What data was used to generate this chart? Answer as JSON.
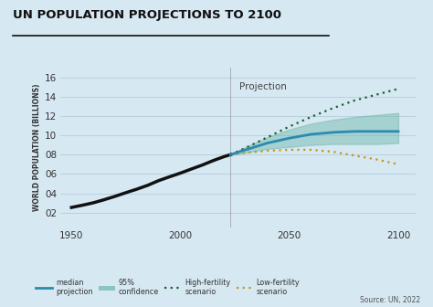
{
  "title": "UN POPULATION PROJECTIONS TO 2100",
  "bg_color": "#d6e8f2",
  "ylabel": "WORLD POPULATION (BILLIONS)",
  "ylim": [
    0.5,
    17
  ],
  "yticks": [
    2,
    4,
    6,
    8,
    10,
    12,
    14,
    16
  ],
  "ytick_labels": [
    "02",
    "04",
    "06",
    "08",
    "10",
    "12",
    "14",
    "16"
  ],
  "xlim": [
    1945,
    2108
  ],
  "xticks": [
    1950,
    2000,
    2050,
    2100
  ],
  "projection_year": 2023,
  "historical": {
    "years": [
      1950,
      1955,
      1960,
      1965,
      1970,
      1975,
      1980,
      1985,
      1990,
      1995,
      2000,
      2005,
      2010,
      2015,
      2020,
      2023
    ],
    "values": [
      2.54,
      2.77,
      3.02,
      3.34,
      3.69,
      4.07,
      4.43,
      4.83,
      5.31,
      5.71,
      6.09,
      6.51,
      6.92,
      7.38,
      7.79,
      8.0
    ]
  },
  "median": {
    "years": [
      2023,
      2030,
      2040,
      2050,
      2060,
      2070,
      2080,
      2090,
      2100
    ],
    "values": [
      8.0,
      8.5,
      9.2,
      9.7,
      10.1,
      10.3,
      10.4,
      10.4,
      10.4
    ]
  },
  "ci_upper": {
    "years": [
      2023,
      2030,
      2040,
      2050,
      2060,
      2070,
      2080,
      2090,
      2100
    ],
    "values": [
      8.05,
      8.8,
      9.8,
      10.6,
      11.2,
      11.6,
      11.9,
      12.1,
      12.3
    ]
  },
  "ci_lower": {
    "years": [
      2023,
      2030,
      2040,
      2050,
      2060,
      2070,
      2080,
      2090,
      2100
    ],
    "values": [
      7.95,
      8.2,
      8.6,
      8.8,
      9.0,
      9.1,
      9.1,
      9.1,
      9.2
    ]
  },
  "high_fertility": {
    "years": [
      2023,
      2030,
      2040,
      2050,
      2060,
      2070,
      2080,
      2090,
      2100
    ],
    "values": [
      8.0,
      8.7,
      9.8,
      10.9,
      11.9,
      12.8,
      13.6,
      14.2,
      14.8
    ]
  },
  "low_fertility": {
    "years": [
      2023,
      2030,
      2040,
      2050,
      2060,
      2070,
      2080,
      2090,
      2100
    ],
    "values": [
      8.0,
      8.2,
      8.4,
      8.5,
      8.5,
      8.3,
      7.9,
      7.5,
      7.0
    ]
  },
  "color_historical": "#111111",
  "color_median": "#2b8ab0",
  "color_confidence": "#6db5aa",
  "color_confidence_alpha": 0.45,
  "color_high": "#1a5c2e",
  "color_low": "#c8941a",
  "color_vline": "#888888",
  "projection_label": "Projection",
  "source_text": "Source: UN, 2022"
}
